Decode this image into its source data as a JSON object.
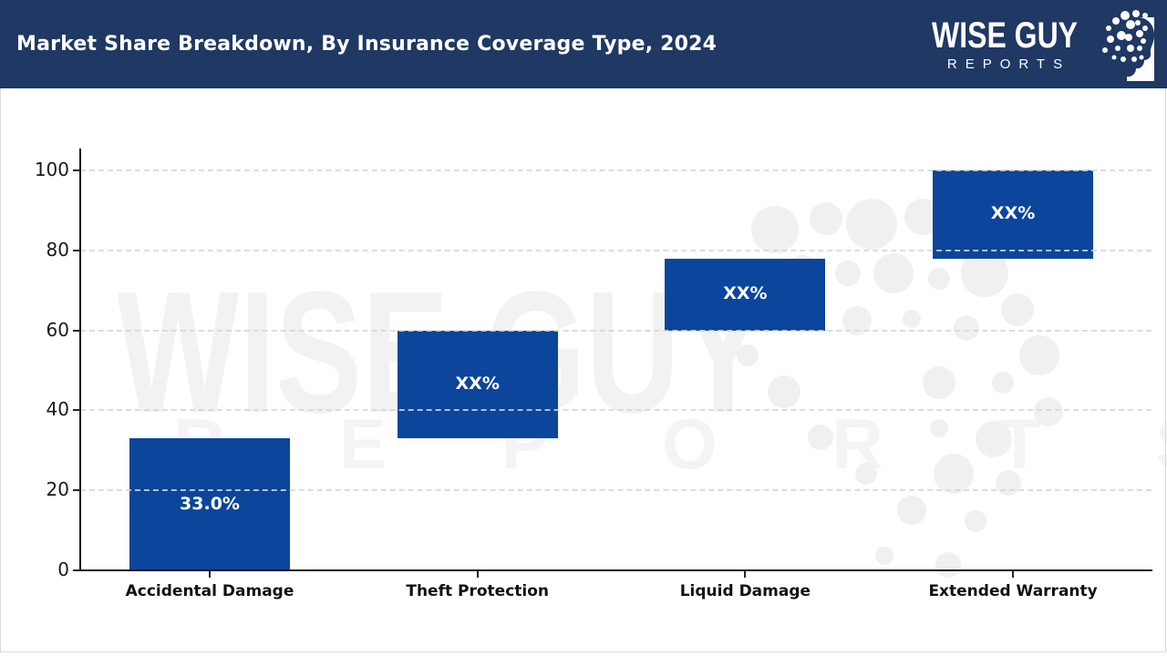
{
  "header": {
    "title": "Market Share Breakdown, By Insurance Coverage Type, 2024",
    "logo": {
      "line1": "WISE GUY",
      "line2": "REPORTS"
    }
  },
  "watermark": {
    "line1": "WISE GUY",
    "line2": "R E P O R T S"
  },
  "colors": {
    "header_bg": "#1F3864",
    "bar": "#0B459C",
    "grid": "#D6D6D6",
    "axis": "#1A1A1A",
    "bar_label": "#FFFFFF",
    "watermark": "#F2F2F2"
  },
  "chart_data": {
    "type": "bar",
    "subtype": "waterfall",
    "title": "Market Share Breakdown, By Insurance Coverage Type, 2024",
    "xlabel": "",
    "ylabel": "",
    "categories": [
      "Accidental Damage",
      "Theft Protection",
      "Liquid Damage",
      "Extended Warranty"
    ],
    "segments": [
      {
        "category": "Accidental Damage",
        "start": 0,
        "end": 33,
        "label": "33.0%"
      },
      {
        "category": "Theft Protection",
        "start": 33,
        "end": 60,
        "label": "XX%"
      },
      {
        "category": "Liquid Damage",
        "start": 60,
        "end": 78,
        "label": "XX%"
      },
      {
        "category": "Extended Warranty",
        "start": 78,
        "end": 100,
        "label": "XX%"
      }
    ],
    "yticks": [
      0,
      20,
      40,
      60,
      80,
      100
    ],
    "ylim": [
      0,
      105
    ],
    "grid": "horizontal-dashed",
    "legend": "none"
  }
}
